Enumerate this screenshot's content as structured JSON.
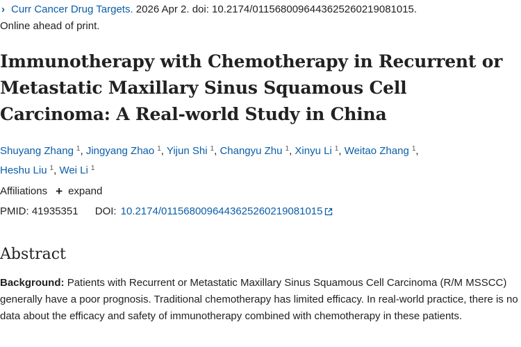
{
  "citation": {
    "journal": "Curr Cancer Drug Targets.",
    "rest": "2026 Apr 2. doi: 10.2174/0115680096443625260219081015.",
    "status": "Online ahead of print."
  },
  "article": {
    "title": "Immunotherapy with Chemotherapy in Recurrent or Metastatic Maxillary Sinus Squamous Cell Carcinoma: A Real-world Study in China"
  },
  "authors": [
    {
      "name": "Shuyang Zhang",
      "aff": "1"
    },
    {
      "name": "Jingyang Zhao",
      "aff": "1"
    },
    {
      "name": "Yijun Shi",
      "aff": "1"
    },
    {
      "name": "Changyu Zhu",
      "aff": "1"
    },
    {
      "name": "Xinyu Li",
      "aff": "1"
    },
    {
      "name": "Weitao Zhang",
      "aff": "1"
    },
    {
      "name": "Heshu Liu",
      "aff": "1"
    },
    {
      "name": "Wei Li",
      "aff": "1"
    }
  ],
  "affiliations": {
    "label": "Affiliations",
    "toggle": "expand"
  },
  "ids": {
    "pmid_label": "PMID:",
    "pmid": "41935351",
    "doi_label": "DOI:",
    "doi": "10.2174/0115680096443625260219081015"
  },
  "abstract": {
    "heading": "Abstract",
    "bg_label": "Background:",
    "bg_text": "Patients with Recurrent or Metastatic Maxillary Sinus Squamous Cell Carcinoma (R/M MSSCC) generally have a poor prognosis. Traditional chemotherapy has limited efficacy. In real-world practice, there is no data about the efficacy and safety of immunotherapy combined with chemotherapy in these patients."
  },
  "colors": {
    "link": "#0b5da8",
    "text": "#212121"
  },
  "icons": [
    "chevron-right-icon",
    "plus-icon",
    "external-link-icon"
  ]
}
